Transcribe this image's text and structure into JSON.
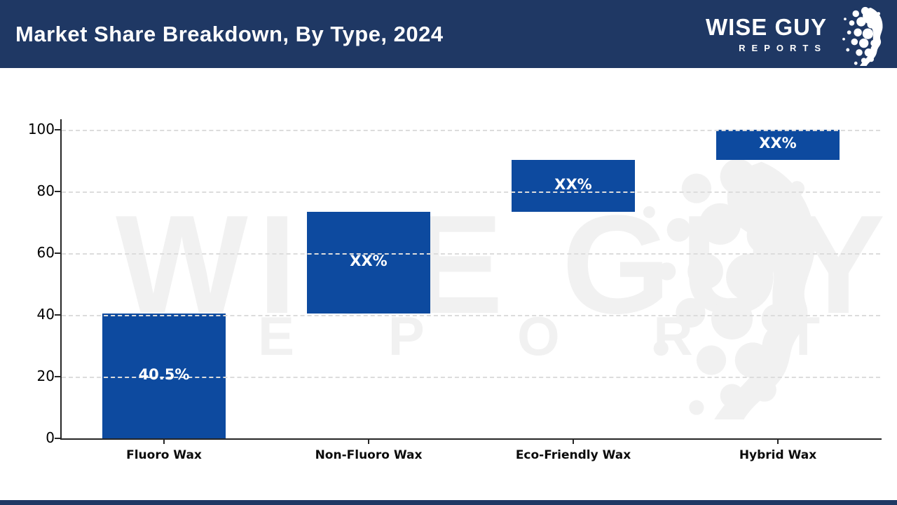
{
  "header": {
    "title": "Market Share Breakdown, By Type, 2024",
    "bg_color": "#1f3864",
    "logo": {
      "line1": "WISE GUY",
      "line2": "REPORTS"
    }
  },
  "watermark": {
    "line1": "WISE GUY",
    "line2": "REPORTS",
    "color": "#f1f1f1"
  },
  "chart_data": {
    "type": "bar",
    "subtype": "waterfall",
    "title": "Market Share Breakdown, By Type, 2024",
    "categories": [
      "Fluoro Wax",
      "Non-Fluoro Wax",
      "Eco-Friendly Wax",
      "Hybrid Wax"
    ],
    "bars": [
      {
        "category": "Fluoro Wax",
        "start": 0,
        "end": 40.5,
        "label": "40.5%"
      },
      {
        "category": "Non-Fluoro Wax",
        "start": 40.5,
        "end": 73.5,
        "label": "XX%"
      },
      {
        "category": "Eco-Friendly Wax",
        "start": 73.5,
        "end": 90.3,
        "label": "XX%"
      },
      {
        "category": "Hybrid Wax",
        "start": 90.3,
        "end": 100,
        "label": "XX%"
      }
    ],
    "yticks": [
      0,
      20,
      40,
      60,
      80,
      100
    ],
    "ylim": [
      0,
      103.5
    ],
    "xlabel": "",
    "ylabel": "",
    "grid": "horizontal-dashed",
    "legend": "none",
    "bar_color": "#0d4a9f",
    "bar_label_color": "#ffffff",
    "grid_color": "#dcdcdc",
    "axis_color": "#262626"
  }
}
